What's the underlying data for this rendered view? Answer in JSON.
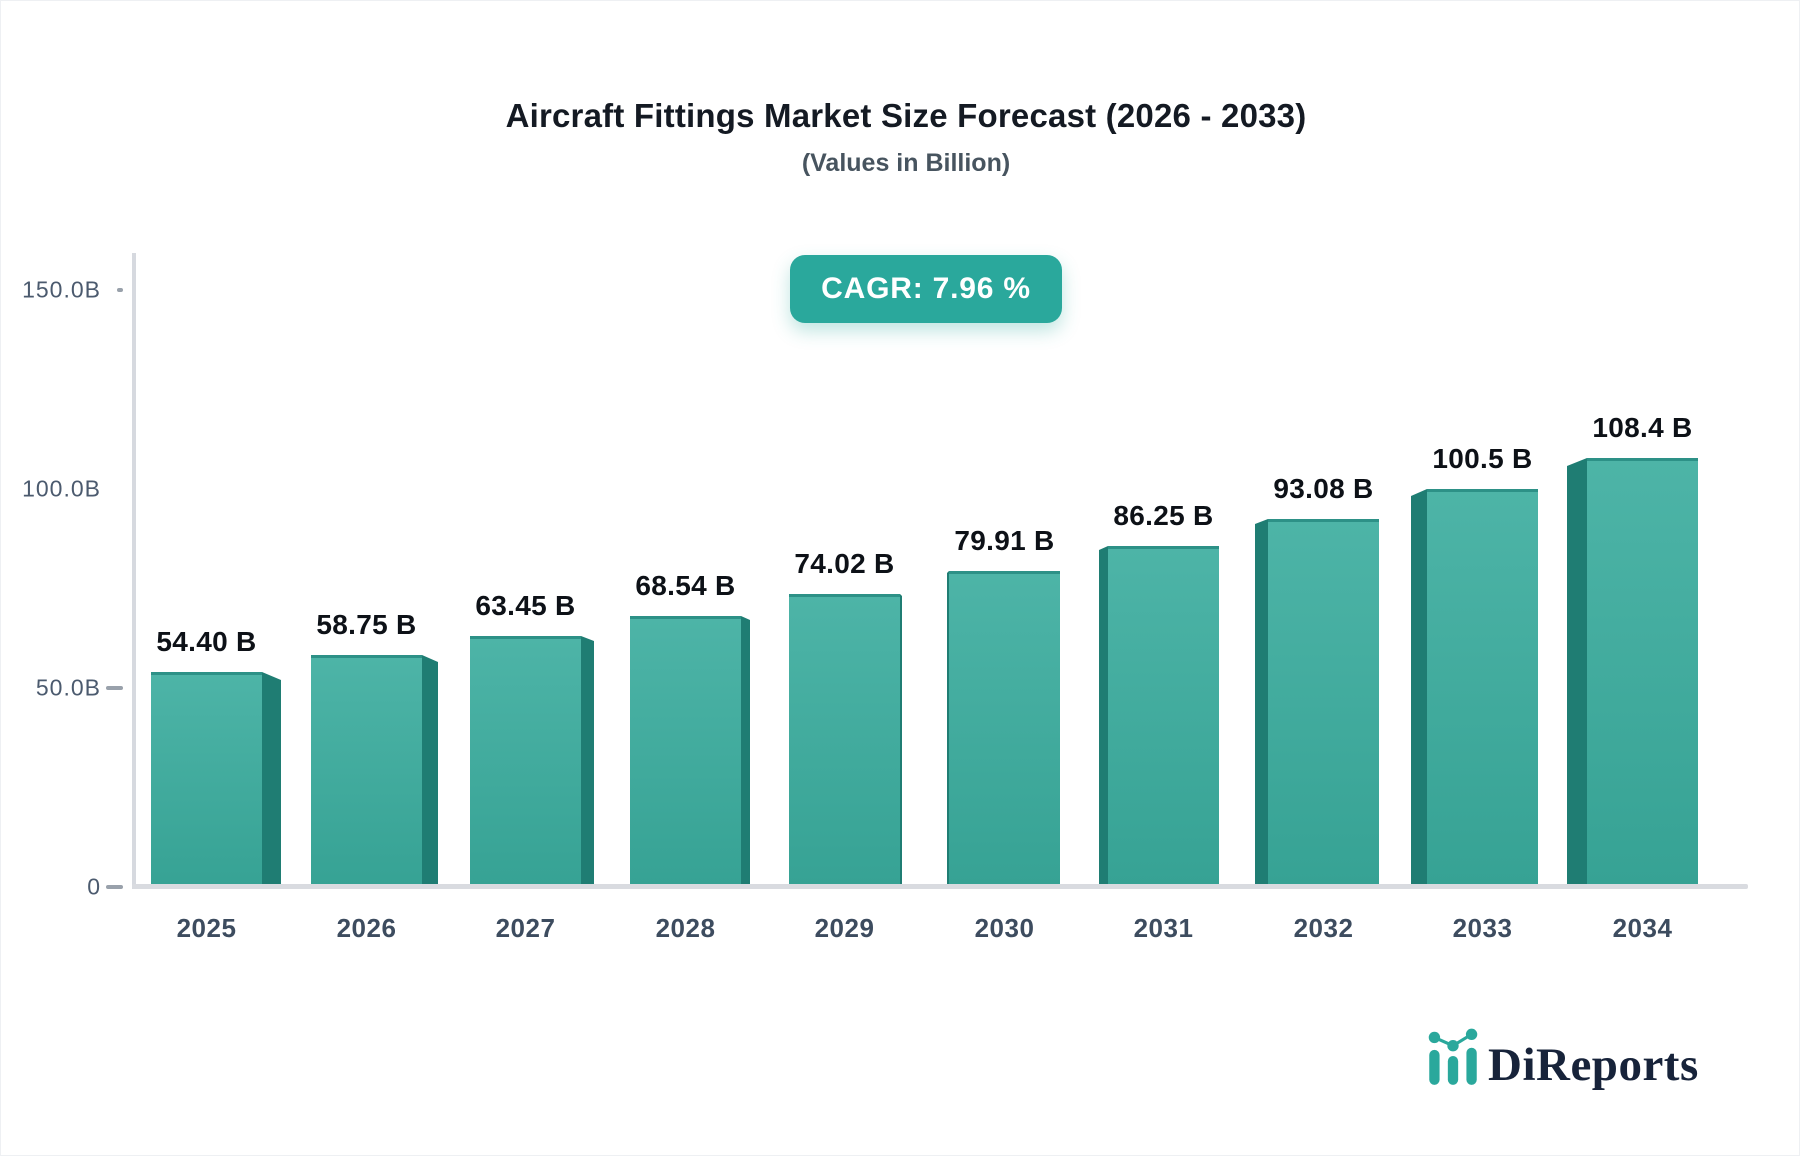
{
  "header": {
    "title": "Aircraft Fittings Market Size Forecast (2026 - 2033)",
    "subtitle": "(Values in Billion)",
    "cagr_badge": "CAGR: 7.96 %"
  },
  "chart_data": {
    "type": "bar",
    "title": "Aircraft Fittings Market Size Forecast (2026 - 2033)",
    "subtitle": "(Values in Billion)",
    "categories": [
      "2025",
      "2026",
      "2027",
      "2028",
      "2029",
      "2030",
      "2031",
      "2032",
      "2033",
      "2034"
    ],
    "values": [
      54.4,
      58.75,
      63.45,
      68.54,
      74.02,
      79.91,
      86.25,
      93.08,
      100.5,
      108.4
    ],
    "value_labels": [
      "54.40 B",
      "58.75 B",
      "63.45 B",
      "68.54 B",
      "74.02 B",
      "79.91 B",
      "86.25 B",
      "93.08 B",
      "100.5 B",
      "108.4 B"
    ],
    "cagr_percent": 7.96,
    "xlabel": "",
    "ylabel": "",
    "ylim": [
      0,
      150
    ],
    "y_ticks": [
      {
        "value": 150,
        "label": "150.0B"
      },
      {
        "value": 100,
        "label": "100.0B"
      },
      {
        "value": 50,
        "label": "50.0B"
      },
      {
        "value": 0,
        "label": "0"
      }
    ],
    "grid": false,
    "legend": false,
    "bar_style": {
      "face_top": "#4db4a7",
      "face_bottom": "#36a294",
      "side": "#1f7d73",
      "top_edge": "#2d9187"
    }
  },
  "branding": {
    "logo_text": "DiReports",
    "logo_icon": "mini-bar-chart-icon",
    "logo_text_color": "#17233a",
    "accent_color": "#2aa89c"
  }
}
